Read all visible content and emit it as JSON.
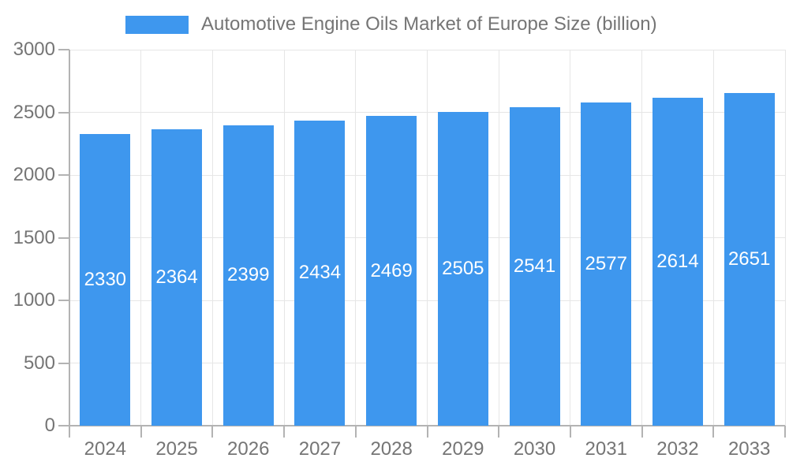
{
  "chart_data": {
    "type": "bar",
    "title": "Automotive Engine Oils Market of Europe Size (billion)",
    "categories": [
      "2024",
      "2025",
      "2026",
      "2027",
      "2028",
      "2029",
      "2030",
      "2031",
      "2032",
      "2033"
    ],
    "values": [
      2330,
      2364,
      2399,
      2434,
      2469,
      2505,
      2541,
      2577,
      2614,
      2651
    ],
    "xlabel": "",
    "ylabel": "",
    "ylim": [
      0,
      3000
    ],
    "yticks": [
      0,
      500,
      1000,
      1500,
      2000,
      2500,
      3000
    ],
    "grid": true,
    "legend_position": "top",
    "colors": {
      "bar": "#3E97EE",
      "bar_value_text": "#ffffff",
      "axis_text": "#757575",
      "title_text": "#757575",
      "gridline": "#e6e6e6",
      "axis_line": "#b3b3b3"
    }
  }
}
